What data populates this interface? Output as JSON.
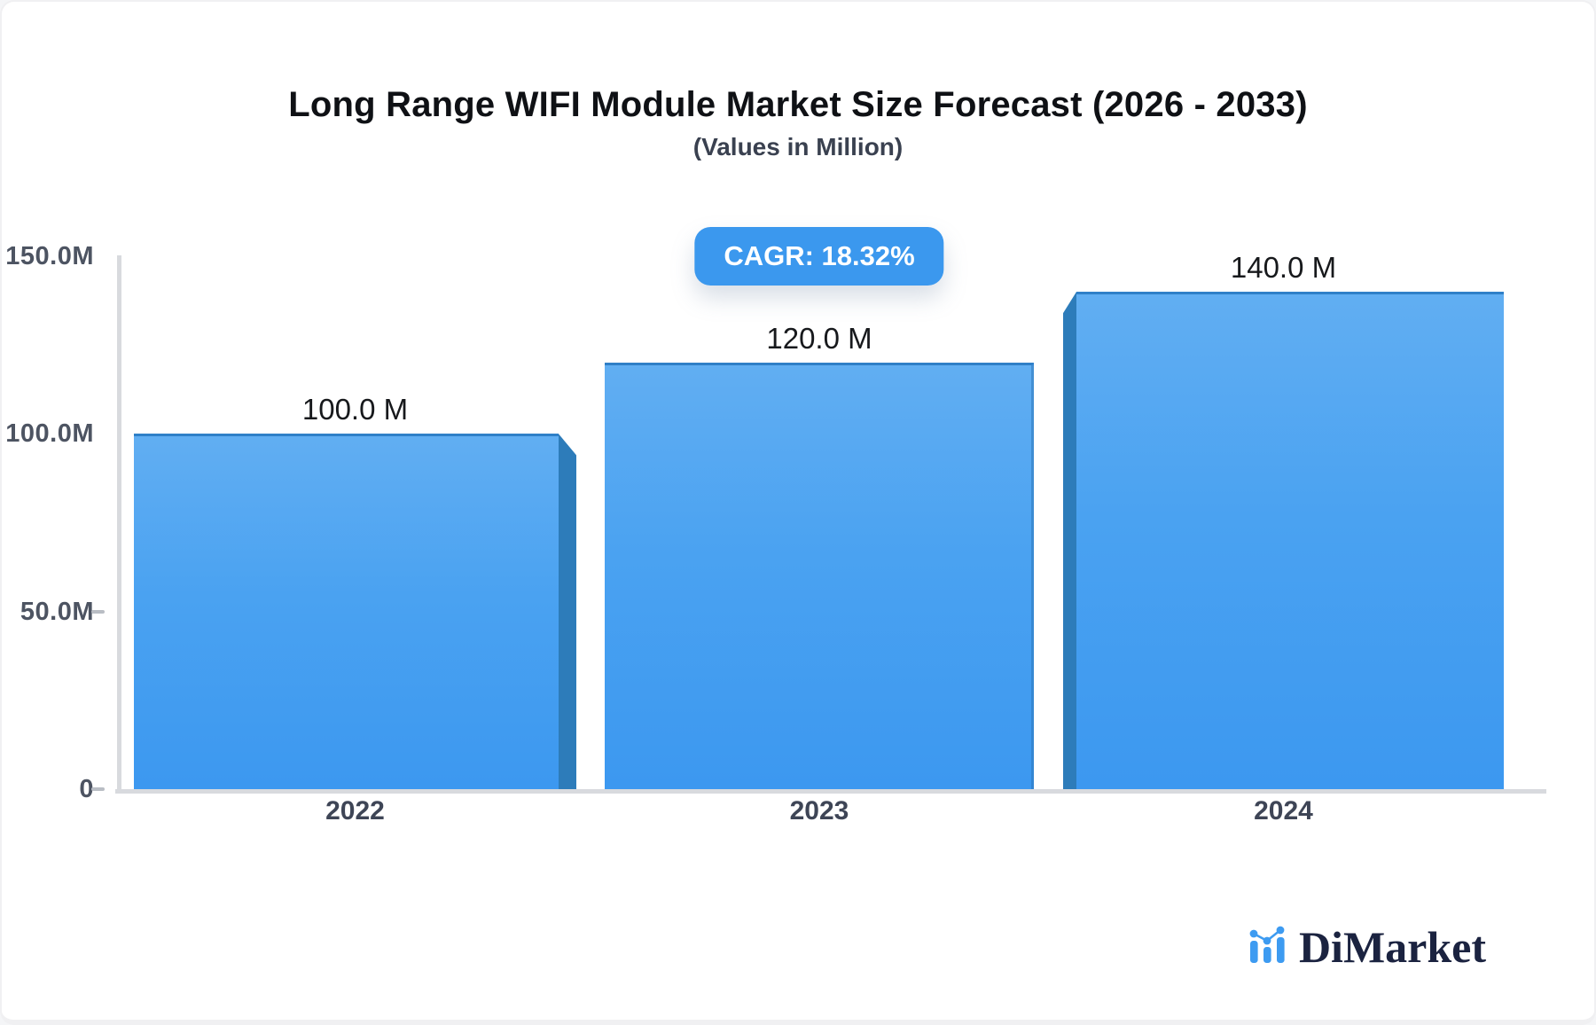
{
  "page": {
    "title": "Long Range WIFI Module Market Size Forecast (2026 - 2033)",
    "subtitle": "(Values in Million)",
    "cagr_badge_label": "CAGR: 18.32%"
  },
  "chart_data": {
    "type": "bar",
    "title": "Long Range WIFI Module Market Size Forecast (2026 - 2033)",
    "subtitle": "(Values in Million)",
    "unit": "Million",
    "cagr_percent": "18.32%",
    "categories": [
      "2022",
      "2023",
      "2024"
    ],
    "values": [
      100,
      120,
      140
    ],
    "value_labels": [
      "100.0 M",
      "120.0 M",
      "140.0 M"
    ],
    "ylim": [
      0,
      150
    ],
    "yticks": [
      {
        "value": 0,
        "label": "0"
      },
      {
        "value": 50,
        "label": "50.0M"
      },
      {
        "value": 100,
        "label": "100.0M"
      },
      {
        "value": 150,
        "label": "150.0M"
      }
    ],
    "grid": false,
    "legend": false,
    "colors": {
      "bar_top": "#61aef2",
      "bar_bottom": "#3c98f0",
      "bar_side": "#2d7cba",
      "badge_bg": "#3b98ee",
      "axis": "#d8dade"
    }
  },
  "branding": {
    "logo_text": "DiMarket",
    "logo_icon": "mini-bar-chart-icon",
    "icon_color": "#3d9bf1",
    "text_color": "#1b2340"
  }
}
